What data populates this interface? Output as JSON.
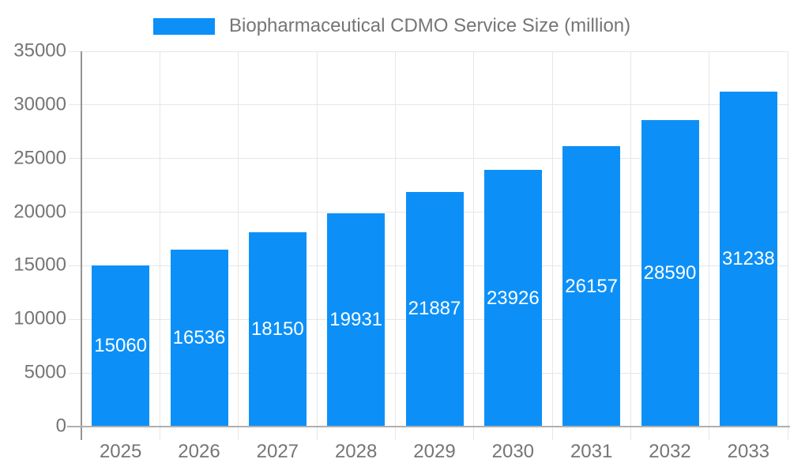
{
  "legend": {
    "label": "Biopharmaceutical CDMO Service Size (million)"
  },
  "colors": {
    "bar": "#0c90f8",
    "grid": "#e6e6e6",
    "y_axis_line": "#949494",
    "x_axis_line": "#b0b0b0",
    "text": "#757575",
    "value_label": "#ffffff",
    "background": "#ffffff"
  },
  "chart_data": {
    "type": "bar",
    "title": "Biopharmaceutical CDMO Service Size (million)",
    "categories": [
      "2025",
      "2026",
      "2027",
      "2028",
      "2029",
      "2030",
      "2031",
      "2032",
      "2033"
    ],
    "series": [
      {
        "name": "Biopharmaceutical CDMO Service Size (million)",
        "values": [
          15060,
          16536,
          18150,
          19931,
          21887,
          23926,
          26157,
          28590,
          31238
        ]
      }
    ],
    "value_labels_shown": true,
    "xlabel": "",
    "ylabel": "",
    "ylim": [
      0,
      35000
    ],
    "yticks": [
      0,
      5000,
      10000,
      15000,
      20000,
      25000,
      30000,
      35000
    ],
    "grid": true,
    "legend_position": "top"
  }
}
